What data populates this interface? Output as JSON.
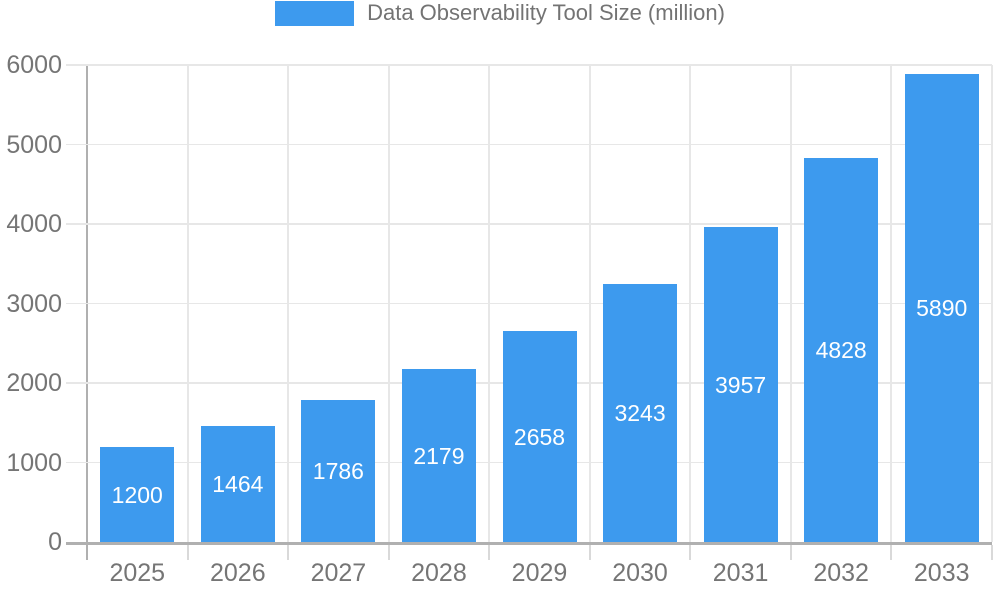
{
  "chart_data": {
    "type": "bar",
    "title": "Data Observability Tool Size (million)",
    "categories": [
      "2025",
      "2026",
      "2027",
      "2028",
      "2029",
      "2030",
      "2031",
      "2032",
      "2033"
    ],
    "values": [
      1200,
      1464,
      1786,
      2179,
      2658,
      3243,
      3957,
      4828,
      5890
    ],
    "series": [
      {
        "name": "Data Observability Tool Size (million)",
        "values": [
          1200,
          1464,
          1786,
          2179,
          2658,
          3243,
          3957,
          4828,
          5890
        ]
      }
    ],
    "xlabel": "",
    "ylabel": "",
    "ylim": [
      0,
      6000
    ],
    "yticks": [
      0,
      1000,
      2000,
      3000,
      4000,
      5000,
      6000
    ],
    "grid": true,
    "legend_position": "top-center",
    "value_labels": "inside-center",
    "colors": {
      "bar": "#3d9aee",
      "axis_text": "#757575",
      "legend_text": "#737373",
      "gridline": "#e7e7e7",
      "axis_line": "#b0b0b0",
      "value_label": "#ffffff",
      "background": "#ffffff"
    }
  }
}
